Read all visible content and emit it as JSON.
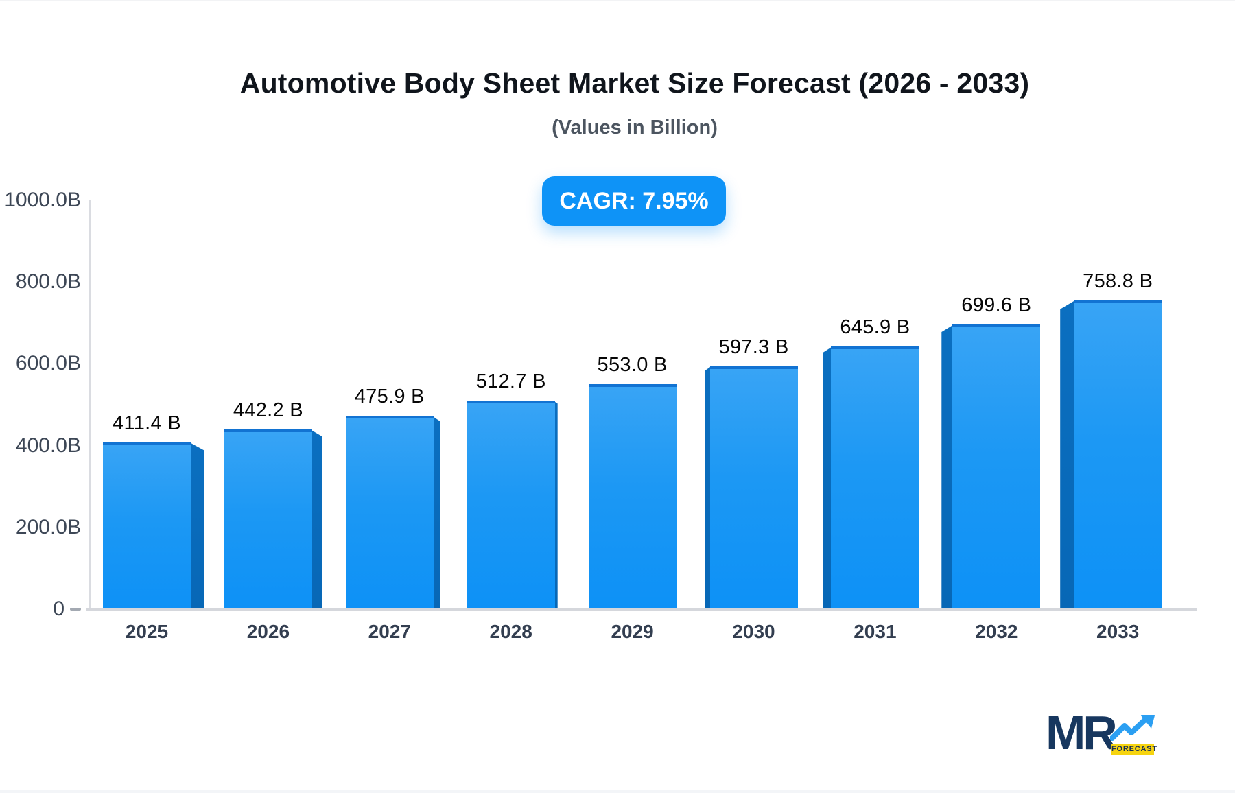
{
  "header": {
    "title": "Automotive Body Sheet Market Size Forecast (2026 - 2033)",
    "subtitle": "(Values in Billion)",
    "cagr_badge": "CAGR: 7.95%"
  },
  "chart_data": {
    "type": "bar",
    "title": "Automotive Body Sheet Market Size Forecast (2026 - 2033)",
    "subtitle": "(Values in Billion)",
    "cagr": "7.95%",
    "categories": [
      "2025",
      "2026",
      "2027",
      "2028",
      "2029",
      "2030",
      "2031",
      "2032",
      "2033"
    ],
    "values": [
      411.4,
      442.2,
      475.9,
      512.7,
      553.0,
      597.3,
      645.9,
      699.6,
      758.8
    ],
    "value_labels": [
      "411.4 B",
      "442.2 B",
      "475.9 B",
      "512.7 B",
      "553.0 B",
      "597.3 B",
      "645.9 B",
      "699.6 B",
      "758.8 B"
    ],
    "unit": "Billion",
    "xlabel": "",
    "ylabel": "",
    "ylim": [
      0,
      1000
    ],
    "y_ticks": [
      {
        "label": "1000.0B",
        "value": 1000
      },
      {
        "label": "800.0B",
        "value": 800
      },
      {
        "label": "600.0B",
        "value": 600
      },
      {
        "label": "400.0B",
        "value": 400
      },
      {
        "label": "200.0B",
        "value": 200
      },
      {
        "label": "0",
        "value": 0
      }
    ],
    "grid": "off",
    "legend": "none",
    "bar_style": "3d",
    "colors": {
      "bar_face_top": "#38a4f5",
      "bar_face_bottom": "#0d91f6",
      "bar_edge": "#1273d2",
      "bar_side": "#0767b6",
      "axis_line": "#d5d7dc",
      "accent": "#0e93f7",
      "value_text": "#060606",
      "axis_text": "#3d4756"
    }
  },
  "logo": {
    "text": "MR",
    "sub": "FORECAST",
    "icon": "trend-up-arrow-icon",
    "navy": "#17375f",
    "yellow": "#f6d410",
    "blue": "#2b9ff2"
  }
}
